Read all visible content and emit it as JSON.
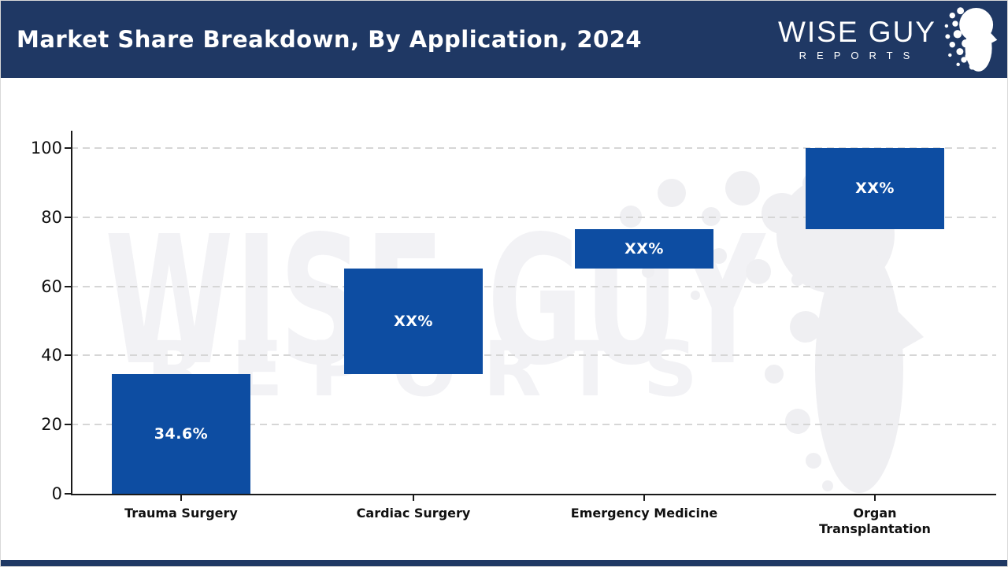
{
  "header": {
    "title": "Market Share Breakdown, By Application, 2024",
    "logo": {
      "line1": "WISE GUY",
      "line2": "REPORTS"
    }
  },
  "watermark": {
    "line1": "WISE GUY",
    "line2": "REPORTS"
  },
  "colors": {
    "header_bg": "#1f3864",
    "footer_bg": "#1f3864",
    "bar": "#0d4da2",
    "grid": "#d6d6d6",
    "axis": "#1a1a1a",
    "value_label": "#ffffff",
    "watermark": "#f2f2f5"
  },
  "chart_data": {
    "type": "bar",
    "subtype": "floating-segment-waterfall",
    "title": "Market Share Breakdown, By Application, 2024",
    "categories": [
      "Trauma Surgery",
      "Cardiac Surgery",
      "Emergency Medicine",
      "Organ Transplantation"
    ],
    "category_display_lines": [
      [
        "Trauma Surgery"
      ],
      [
        "Cardiac Surgery"
      ],
      [
        "Emergency Medicine"
      ],
      [
        "Organ",
        "Transplantation"
      ]
    ],
    "segments": [
      {
        "category": "Trauma Surgery",
        "start": 0,
        "end": 34.6,
        "value": 34.6,
        "label": "34.6%"
      },
      {
        "category": "Cardiac Surgery",
        "start": 34.6,
        "end": 65.2,
        "value": 30.6,
        "label": "XX%"
      },
      {
        "category": "Emergency Medicine",
        "start": 65.2,
        "end": 76.6,
        "value": 11.4,
        "label": "XX%"
      },
      {
        "category": "Organ Transplantation",
        "start": 76.6,
        "end": 100,
        "value": 23.4,
        "label": "XX%"
      }
    ],
    "xlabel": "",
    "ylabel": "",
    "yticks": [
      0,
      20,
      40,
      60,
      80,
      100
    ],
    "ylim": [
      0,
      105
    ],
    "grid": "horizontal dashed",
    "legend": "none",
    "bar_color": "#0d4da2",
    "value_label_color": "#ffffff"
  }
}
